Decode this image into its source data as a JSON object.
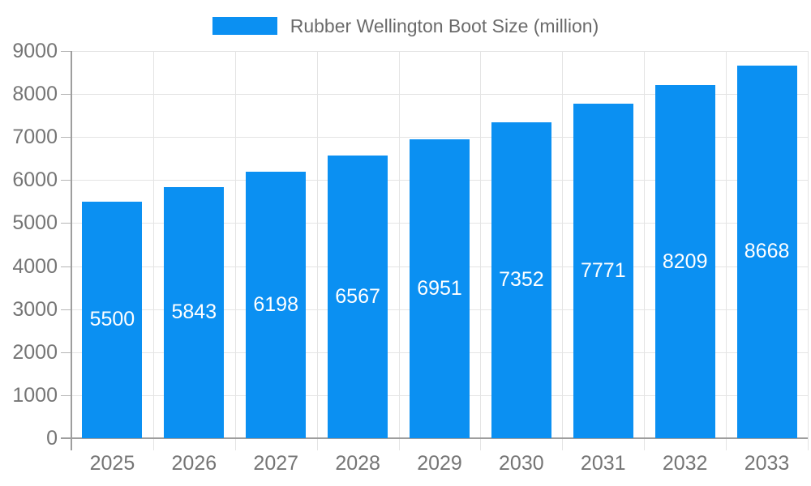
{
  "chart_data": {
    "type": "bar",
    "title": "Rubber Wellington Boot Size (million)",
    "categories": [
      "2025",
      "2026",
      "2027",
      "2028",
      "2029",
      "2030",
      "2031",
      "2032",
      "2033"
    ],
    "values": [
      5500,
      5843,
      6198,
      6567,
      6951,
      7352,
      7771,
      8209,
      8668
    ],
    "series": [
      {
        "name": "Rubber Wellington Boot Size (million)",
        "values": [
          5500,
          5843,
          6198,
          6567,
          6951,
          7352,
          7771,
          8209,
          8668
        ]
      }
    ],
    "xlabel": "",
    "ylabel": "",
    "ylim": [
      0,
      9000
    ],
    "yticks": [
      0,
      1000,
      2000,
      3000,
      4000,
      5000,
      6000,
      7000,
      8000,
      9000
    ],
    "grid": true,
    "legend_position": "top-center",
    "value_labels": "centered-inside-bars",
    "bar_color": "#0b90f2",
    "value_label_color": "#ffffff",
    "axis_label_color": "#757575",
    "axis_line_color": "#9e9e9e",
    "grid_color": "#e4e4e4",
    "background_color": "#ffffff"
  }
}
